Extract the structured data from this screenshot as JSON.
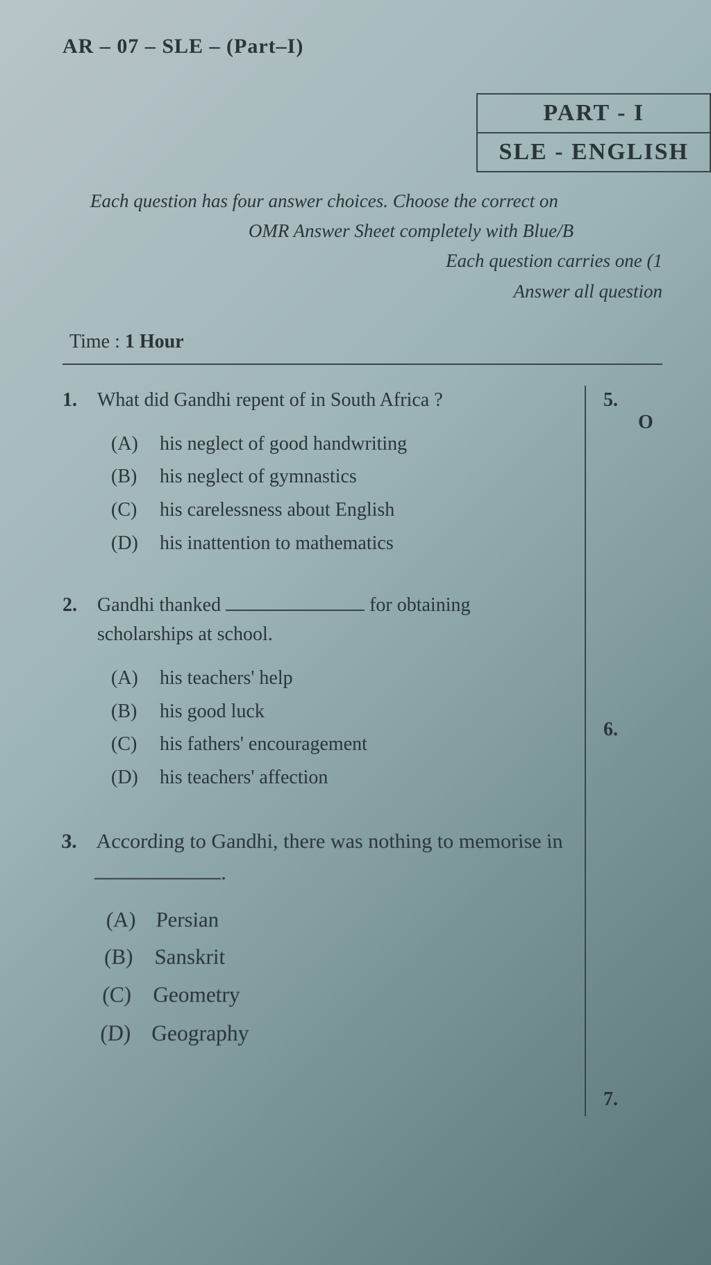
{
  "header": {
    "code": "AR – 07 – SLE – (Part–I)"
  },
  "partBox": {
    "row1": "PART - I",
    "row2": "SLE - ENGLISH"
  },
  "instructions": {
    "line1": "Each question has four answer choices. Choose the correct on",
    "line2": "OMR Answer Sheet completely with Blue/B",
    "line3": "Each question carries one (1",
    "line4": "Answer all question"
  },
  "time": {
    "label": "Time : ",
    "value": "1 Hour"
  },
  "questions": [
    {
      "num": "1.",
      "text": "What did Gandhi repent of in South Africa ?",
      "options": [
        {
          "label": "(A)",
          "text": "his neglect of good handwriting"
        },
        {
          "label": "(B)",
          "text": "his neglect of gymnastics"
        },
        {
          "label": "(C)",
          "text": "his carelessness about English"
        },
        {
          "label": "(D)",
          "text": "his inattention to mathematics"
        }
      ]
    },
    {
      "num": "2.",
      "textPre": "Gandhi thanked ",
      "textPost": " for obtaining scholarships at school.",
      "options": [
        {
          "label": "(A)",
          "text": "his teachers' help"
        },
        {
          "label": "(B)",
          "text": "his good luck"
        },
        {
          "label": "(C)",
          "text": "his fathers' encouragement"
        },
        {
          "label": "(D)",
          "text": "his teachers' affection"
        }
      ]
    },
    {
      "num": "3.",
      "textPre": "According to Gandhi, there was nothing to memorise in ",
      "textPost": ".",
      "options": [
        {
          "label": "(A)",
          "text": "Persian"
        },
        {
          "label": "(B)",
          "text": "Sanskrit"
        },
        {
          "label": "(C)",
          "text": "Geometry"
        },
        {
          "label": "(D)",
          "text": "Geography"
        }
      ]
    }
  ],
  "rightColumn": {
    "q5": "5.",
    "q5o": "O",
    "q6": "6.",
    "q7": "7."
  }
}
